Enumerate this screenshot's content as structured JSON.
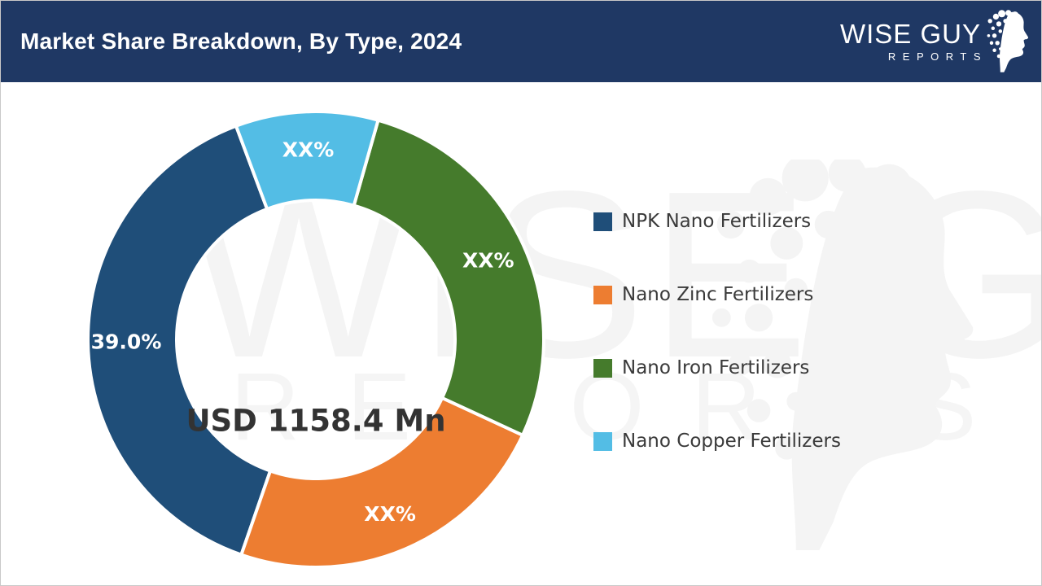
{
  "header": {
    "title": "Market Share Breakdown, By Type, 2024",
    "logo": {
      "name": "WISE GUY",
      "subtitle": "REPORTS"
    }
  },
  "watermark": {
    "name": "WISE GUY",
    "subtitle": "REPORTS"
  },
  "chart_data": {
    "type": "pie",
    "subtype": "donut",
    "title": "Market Share Breakdown, By Type, 2024",
    "center_label": "USD 1158.4 Mn",
    "start_angle_deg": 110.5,
    "direction": "counterclockwise",
    "legend_position": "right",
    "segments": [
      {
        "label": "NPK Nano Fertilizers",
        "value_pct": 39.0,
        "display_label": "39.0%",
        "color": "#1f4e79"
      },
      {
        "label": "Nano Zinc Fertilizers",
        "value_pct": 23.4,
        "display_label": "XX%",
        "color": "#ed7d31"
      },
      {
        "label": "Nano Iron Fertilizers",
        "value_pct": 27.5,
        "display_label": "XX%",
        "color": "#457b2c"
      },
      {
        "label": "Nano Copper Fertilizers",
        "value_pct": 10.1,
        "display_label": "XX%",
        "color": "#53bde5"
      }
    ]
  },
  "colors": {
    "header_bg": "#1f3864",
    "title_text": "#ffffff",
    "center_text": "#333333",
    "legend_text": "#3a3a3a",
    "segment_gap": "#ffffff",
    "page_border": "#c9c9c9",
    "watermark": "#f4f4f4"
  }
}
